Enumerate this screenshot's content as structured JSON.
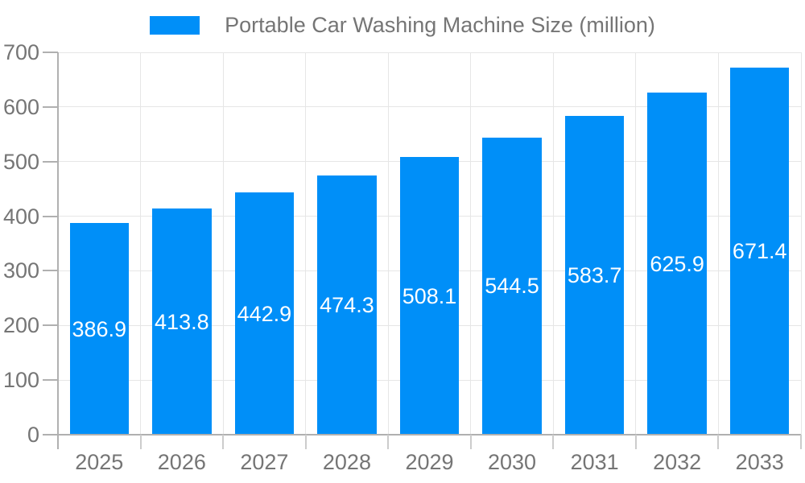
{
  "legend": {
    "label": "Portable Car Washing Machine Size (million)"
  },
  "chart_data": {
    "type": "bar",
    "title": "Portable Car Washing Machine Size (million)",
    "series_name": "Portable Car Washing Machine Size (million)",
    "categories": [
      "2025",
      "2026",
      "2027",
      "2028",
      "2029",
      "2030",
      "2031",
      "2032",
      "2033"
    ],
    "values": [
      386.9,
      413.8,
      442.9,
      474.3,
      508.1,
      544.5,
      583.7,
      625.9,
      671.4
    ],
    "value_labels": [
      "386.9",
      "413.8",
      "442.9",
      "474.3",
      "508.1",
      "544.5",
      "583.7",
      "625.9",
      "671.4"
    ],
    "y_ticks": [
      0,
      100,
      200,
      300,
      400,
      500,
      600,
      700
    ],
    "y_tick_labels": [
      "0",
      "100",
      "200",
      "300",
      "400",
      "500",
      "600",
      "700"
    ],
    "ylim": [
      0,
      700
    ],
    "xlabel": "",
    "ylabel": "",
    "grid": true,
    "legend_position": "top",
    "bar_color": "#008ff8",
    "value_label_color": "#ffffff",
    "axis_text_color": "#757575",
    "grid_color": "#e6e6e6",
    "axis_line_color": "#b0b0b0"
  }
}
